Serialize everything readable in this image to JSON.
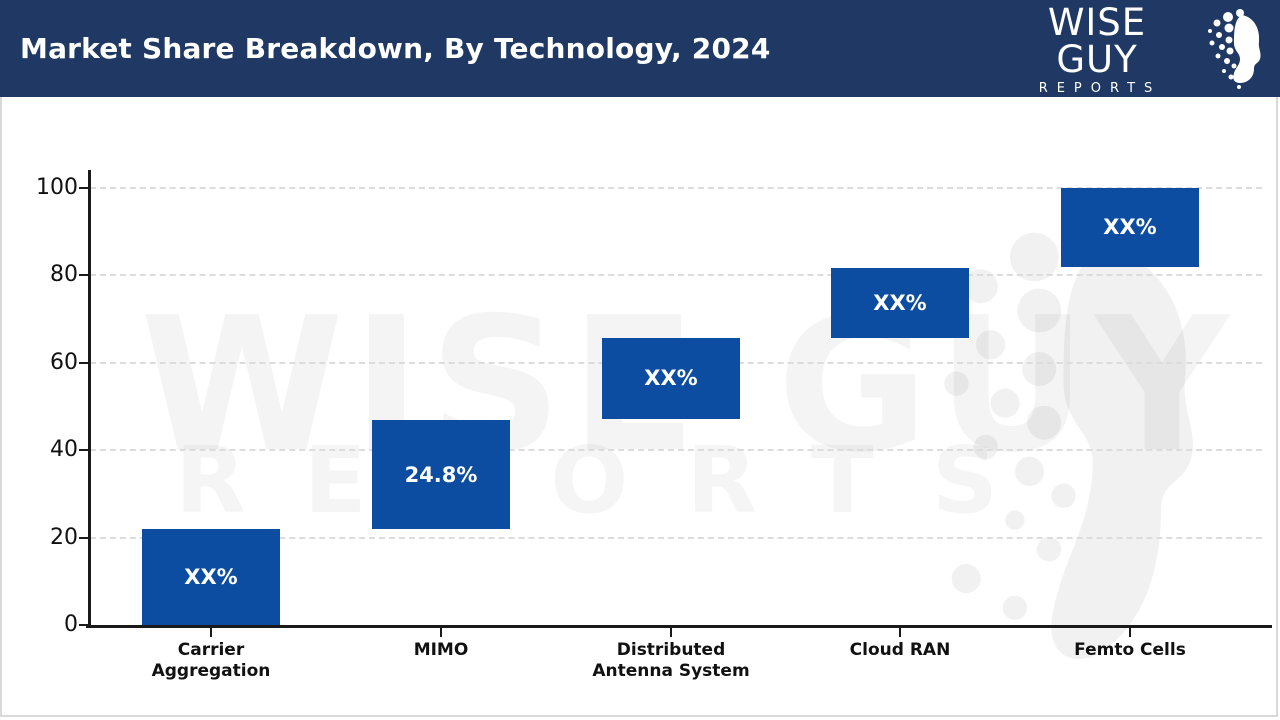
{
  "header": {
    "title": "Market Share Breakdown, By Technology, 2024",
    "logo": {
      "line1": "WISE GUY",
      "line2": "REPORTS"
    }
  },
  "watermark": {
    "line1": "WISE GUY",
    "line2": "REPORTS"
  },
  "colors": {
    "header_bg": "#1f3864",
    "bar_fill": "#0c4da2",
    "gridline": "#dcdcdc",
    "axis": "#1a1a1a",
    "bar_label_text": "#ffffff"
  },
  "chart_data": {
    "type": "bar",
    "subtype": "floating-waterfall",
    "title": "Market Share Breakdown, By Technology, 2024",
    "categories": [
      "Carrier\nAggregation",
      "MIMO",
      "Distributed\nAntenna System",
      "Cloud RAN",
      "Femto Cells"
    ],
    "segments": [
      {
        "category": "Carrier Aggregation",
        "start": 0,
        "end": 22,
        "label": "XX%"
      },
      {
        "category": "MIMO",
        "start": 22,
        "end": 46.8,
        "label": "24.8%"
      },
      {
        "category": "Distributed Antenna System",
        "start": 47,
        "end": 65.7,
        "label": "XX%"
      },
      {
        "category": "Cloud RAN",
        "start": 65.7,
        "end": 81.6,
        "label": "XX%"
      },
      {
        "category": "Femto Cells",
        "start": 81.8,
        "end": 100,
        "label": "XX%"
      }
    ],
    "yticks": [
      "0",
      "20",
      "40",
      "60",
      "80",
      "100"
    ],
    "ylim": [
      0,
      104
    ],
    "xlabel": "",
    "ylabel": "",
    "grid": "horizontal-dashed",
    "legend": "none"
  }
}
